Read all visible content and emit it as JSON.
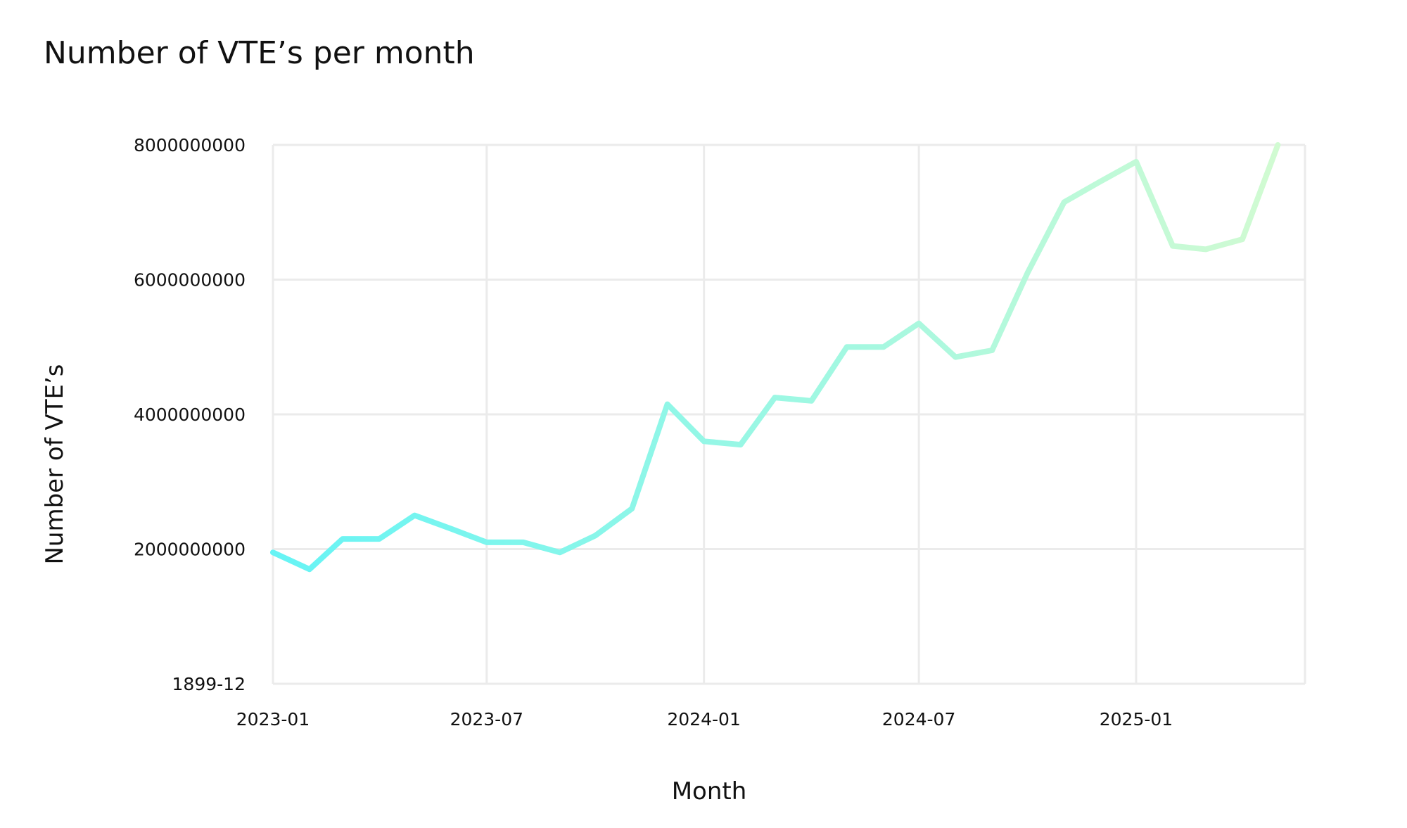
{
  "chart_data": {
    "type": "line",
    "title": "Number of VTE’s per month",
    "xlabel": "Month",
    "ylabel": "Number of VTE’s",
    "xlim": [
      "2023-01-01",
      "2025-05-24"
    ],
    "ylim": [
      0,
      8000000000
    ],
    "xticks": [
      {
        "date": "2023-01-01",
        "label": "2023-01"
      },
      {
        "date": "2023-07-01",
        "label": "2023-07"
      },
      {
        "date": "2024-01-01",
        "label": "2024-01"
      },
      {
        "date": "2024-07-01",
        "label": "2024-07"
      },
      {
        "date": "2025-01-01",
        "label": "2025-01"
      }
    ],
    "yticks": [
      {
        "value": 0,
        "label": "1899-12"
      },
      {
        "value": 2000000000,
        "label": "2000000000"
      },
      {
        "value": 4000000000,
        "label": "4000000000"
      },
      {
        "value": 6000000000,
        "label": "6000000000"
      },
      {
        "value": 8000000000,
        "label": "8000000000"
      }
    ],
    "grid": true,
    "legend": "none",
    "gradient_colors": [
      "#66f4f5",
      "#d4fbd1"
    ],
    "series": [
      {
        "x": [
          "2023-01-01",
          "2023-02-01",
          "2023-03-01",
          "2023-04-01",
          "2023-05-01",
          "2023-06-01",
          "2023-07-01",
          "2023-08-01",
          "2023-09-01",
          "2023-10-01",
          "2023-11-01",
          "2023-12-01",
          "2024-01-01",
          "2024-02-01",
          "2024-03-01",
          "2024-04-01",
          "2024-05-01",
          "2024-06-01",
          "2024-07-01",
          "2024-08-01",
          "2024-09-01",
          "2024-10-01",
          "2024-11-01",
          "2024-12-01",
          "2025-01-01",
          "2025-02-01",
          "2025-03-01",
          "2025-04-01",
          "2025-05-01"
        ],
        "y": [
          1950000000,
          1700000000,
          2150000000,
          2150000000,
          2500000000,
          2300000000,
          2100000000,
          2100000000,
          1950000000,
          2200000000,
          2600000000,
          4150000000,
          3600000000,
          3550000000,
          4250000000,
          4200000000,
          5000000000,
          5000000000,
          5350000000,
          4850000000,
          4950000000,
          6100000000,
          7150000000,
          7450000000,
          7750000000,
          6500000000,
          6450000000,
          6600000000,
          8000000000
        ]
      }
    ]
  }
}
